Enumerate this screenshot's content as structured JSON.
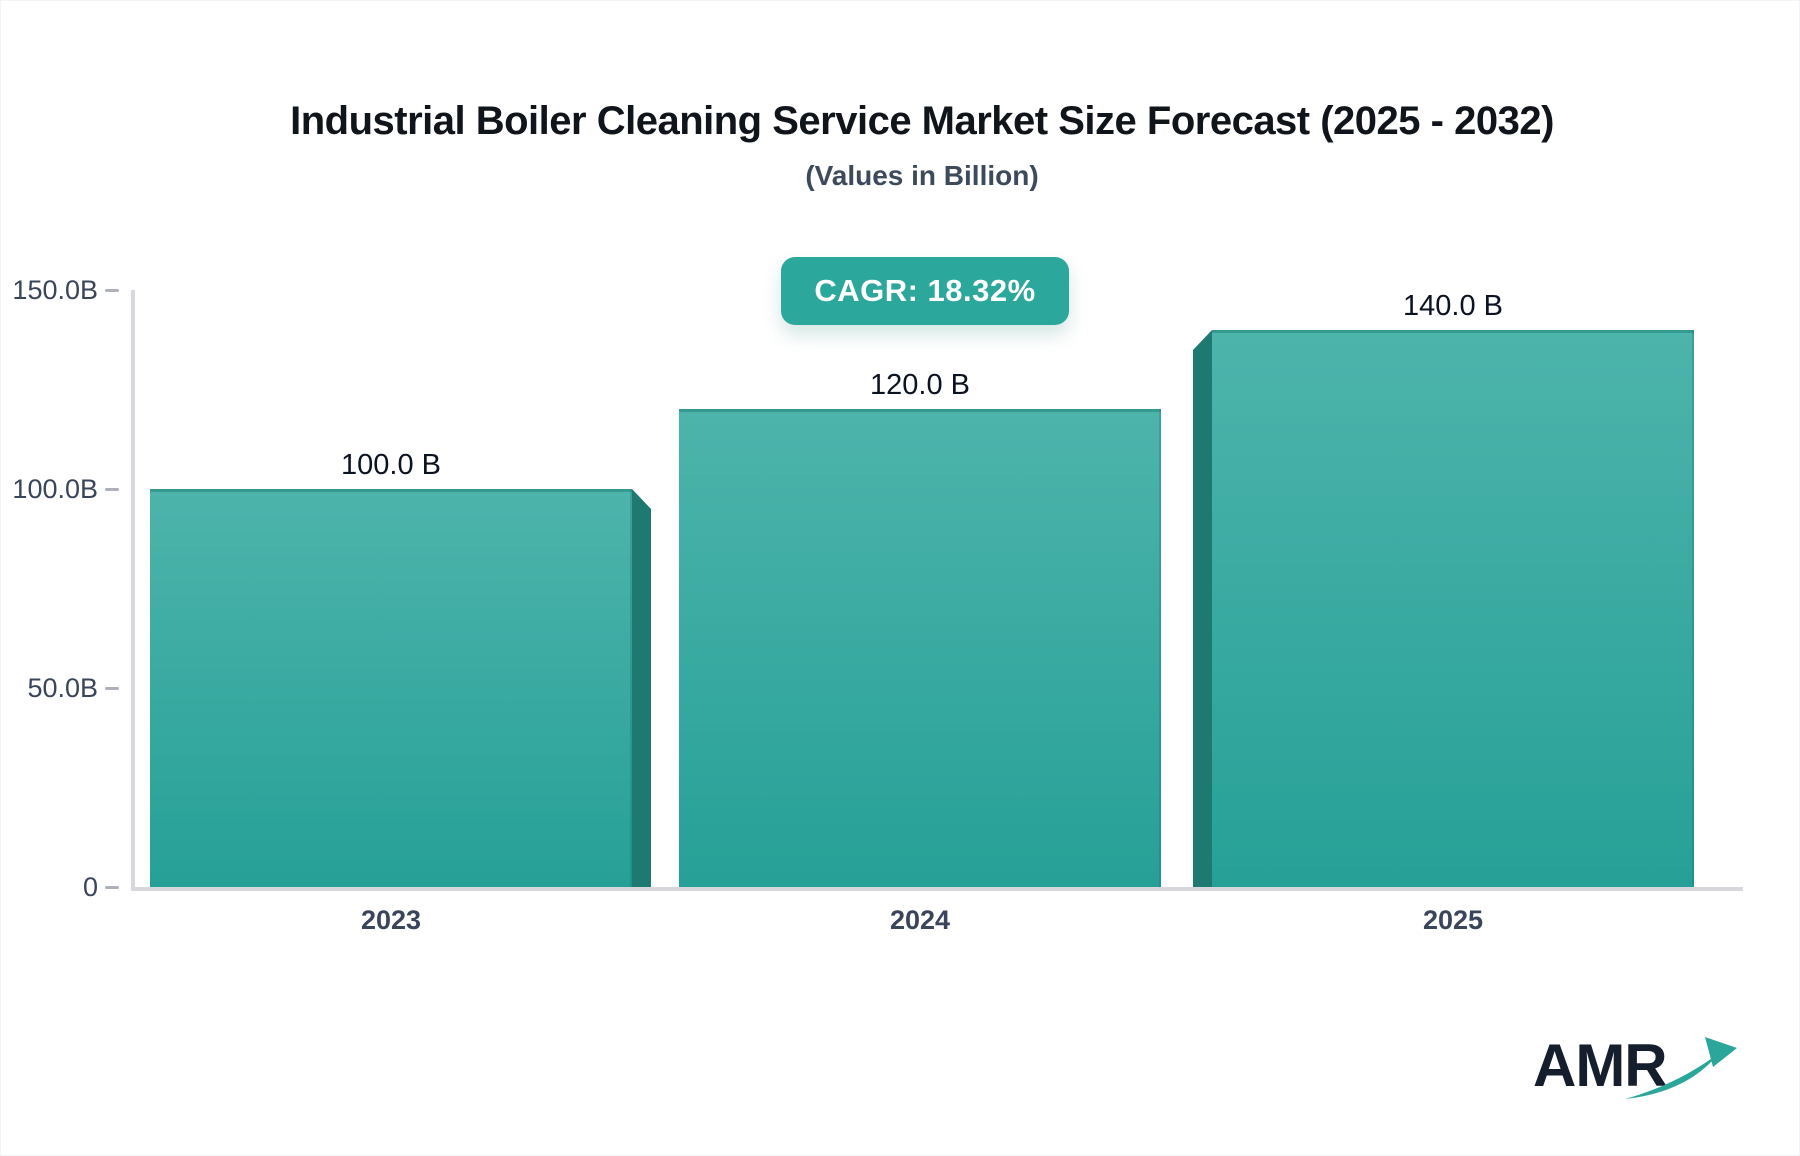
{
  "header": {
    "title": "Industrial Boiler Cleaning Service Market Size Forecast (2025 - 2032)",
    "subtitle": "(Values in Billion)"
  },
  "badge": {
    "label": "CAGR: 18.32%",
    "color": "#2BA79C"
  },
  "chart_data": {
    "type": "bar",
    "title": "Industrial Boiler Cleaning Service Market Size Forecast (2025 - 2032)",
    "subtitle": "(Values in Billion)",
    "unit": "Billion",
    "cagr_label": "CAGR: 18.32%",
    "categories": [
      "2023",
      "2024",
      "2025"
    ],
    "values": [
      100.0,
      120.0,
      140.0
    ],
    "value_labels": [
      "100.0 B",
      "120.0 B",
      "140.0 B"
    ],
    "ylim": [
      0,
      150
    ],
    "yticks": [
      {
        "value": 150,
        "label": "150.0B"
      },
      {
        "value": 100,
        "label": "100.0B"
      },
      {
        "value": 50,
        "label": "50.0B"
      },
      {
        "value": 0,
        "label": "0"
      }
    ],
    "grid": false,
    "legend": false,
    "bar_color_top": "#4DB4AB",
    "bar_color_bottom": "#26A097",
    "bar_side_color": "#1E7A71",
    "axis_color": "#D7D8DE",
    "label_color": "#39455A"
  },
  "logo": {
    "text": "AMR",
    "arrow_color": "#2BA69B"
  }
}
